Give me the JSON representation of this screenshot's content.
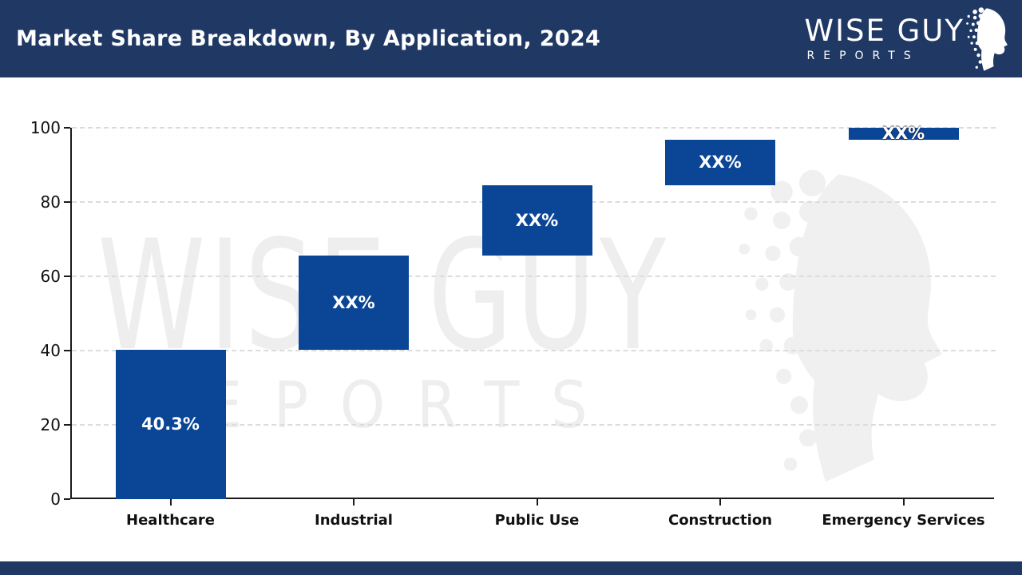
{
  "header": {
    "title": "Market Share Breakdown, By Application, 2024",
    "logo": {
      "line1": "WISE GUY",
      "line2": "REPORTS"
    }
  },
  "watermark": {
    "line1": "WISE GUY",
    "line2": "REPORTS"
  },
  "chart_data": {
    "type": "bar",
    "subtype": "waterfall",
    "title": "Market Share Breakdown, By Application, 2024",
    "xlabel": "",
    "ylabel": "",
    "categories": [
      "Healthcare",
      "Industrial",
      "Public Use",
      "Construction",
      "Emergency Services"
    ],
    "segments": [
      {
        "category": "Healthcare",
        "start": 0,
        "end": 40.3,
        "label": "40.3%"
      },
      {
        "category": "Industrial",
        "start": 40.3,
        "end": 65.5,
        "label": "XX%"
      },
      {
        "category": "Public Use",
        "start": 65.5,
        "end": 84.5,
        "label": "XX%"
      },
      {
        "category": "Construction",
        "start": 84.5,
        "end": 96.8,
        "label": "XX%"
      },
      {
        "category": "Emergency Services",
        "start": 96.8,
        "end": 100,
        "label": "XX%"
      }
    ],
    "y_ticks": [
      0,
      20,
      40,
      60,
      80,
      100
    ],
    "ylim": [
      0,
      100
    ],
    "grid": "horizontal-dashed",
    "legend": "none"
  },
  "colors": {
    "header_bg": "#1f3864",
    "footer_bg": "#1f3864",
    "bar": "#0b4696",
    "bar_label": "#ffffff",
    "grid": "#dcdcdc",
    "axis": "#1a1a1a",
    "watermark": "#eeeeee"
  }
}
